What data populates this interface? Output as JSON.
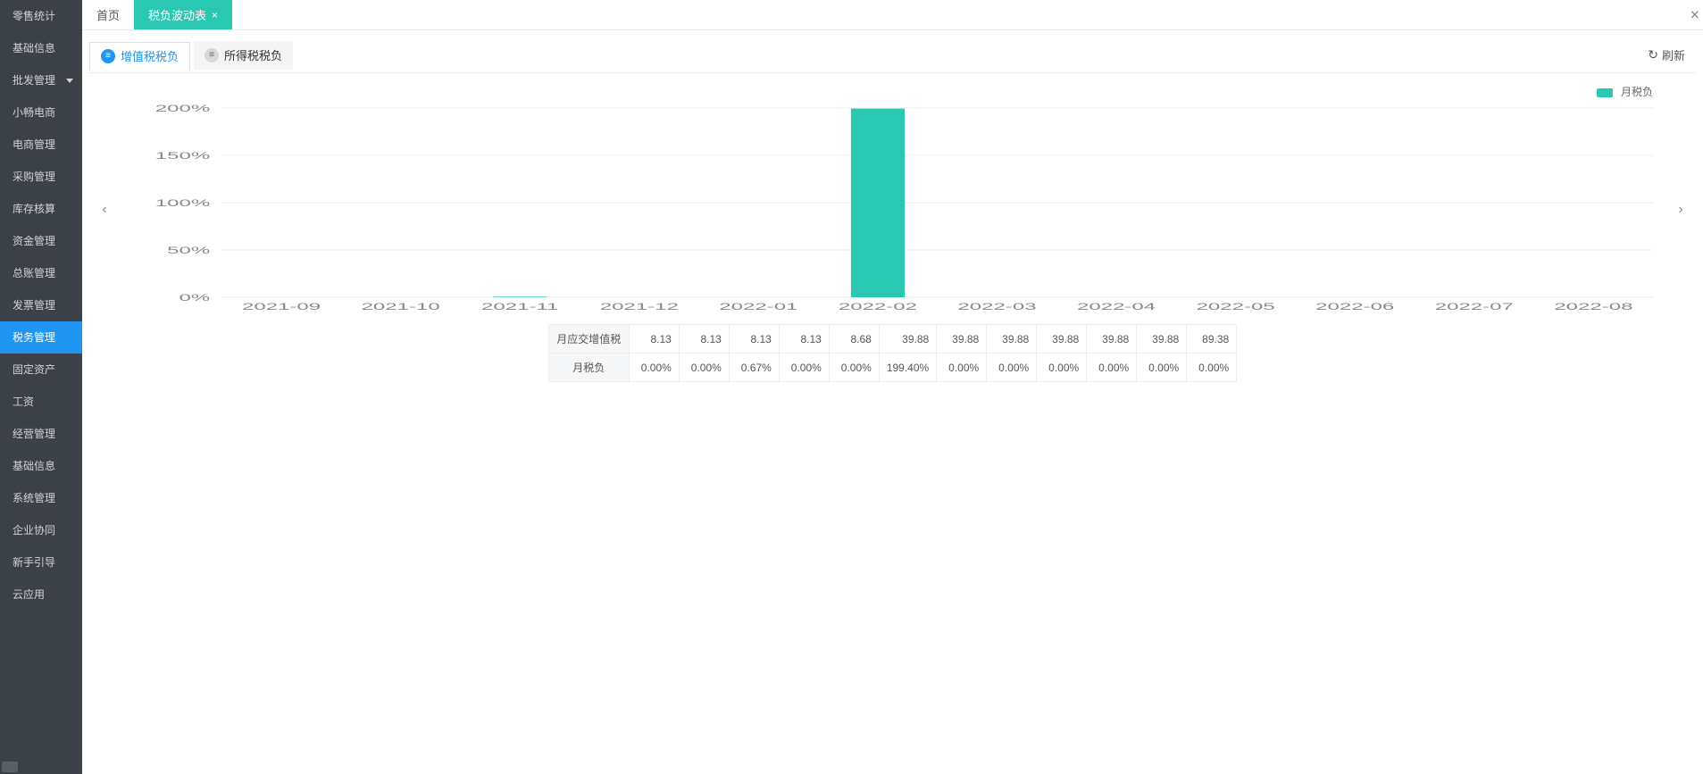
{
  "sidebar": {
    "items": [
      {
        "label": "零售统计"
      },
      {
        "label": "基础信息"
      },
      {
        "label": "批发管理",
        "caret": true
      },
      {
        "label": "小畅电商"
      },
      {
        "label": "电商管理"
      },
      {
        "label": "采购管理"
      },
      {
        "label": "库存核算"
      },
      {
        "label": "资金管理"
      },
      {
        "label": "总账管理"
      },
      {
        "label": "发票管理"
      },
      {
        "label": "税务管理",
        "active": true
      },
      {
        "label": "固定资产"
      },
      {
        "label": "工资"
      },
      {
        "label": "经营管理"
      },
      {
        "label": "基础信息"
      },
      {
        "label": "系统管理"
      },
      {
        "label": "企业协同"
      },
      {
        "label": "新手引导"
      },
      {
        "label": "云应用"
      }
    ]
  },
  "tabs": {
    "items": [
      {
        "label": "首页",
        "active": false,
        "closable": false
      },
      {
        "label": "税负波动表",
        "active": true,
        "closable": true
      }
    ]
  },
  "subtabs": {
    "items": [
      {
        "label": "增值税税负",
        "active": true,
        "icon": "≡"
      },
      {
        "label": "所得税税负",
        "active": false,
        "icon": "≡"
      }
    ],
    "refresh_label": "刷新"
  },
  "chart": {
    "type": "bar",
    "legend_label": "月税负",
    "categories": [
      "2021-09",
      "2021-10",
      "2021-11",
      "2021-12",
      "2022-01",
      "2022-02",
      "2022-03",
      "2022-04",
      "2022-05",
      "2022-06",
      "2022-07",
      "2022-08"
    ],
    "values_pct": [
      0.0,
      0.0,
      0.67,
      0.0,
      0.0,
      199.4,
      0.0,
      0.0,
      0.0,
      0.0,
      0.0,
      0.0
    ],
    "bar_color": "#2ac8b0",
    "ylim": [
      0,
      200
    ],
    "ytick_step": 50,
    "ytick_labels": [
      "0%",
      "50%",
      "100%",
      "150%",
      "200%"
    ],
    "grid_color": "#eeeeee",
    "axis_text_color": "#888888",
    "bar_width_ratio": 0.45
  },
  "table": {
    "row_headers": [
      "月应交增值税",
      "月税负"
    ],
    "rows": [
      [
        "8.13",
        "8.13",
        "8.13",
        "8.13",
        "8.68",
        "39.88",
        "39.88",
        "39.88",
        "39.88",
        "39.88",
        "39.88",
        "89.38"
      ],
      [
        "0.00%",
        "0.00%",
        "0.67%",
        "0.00%",
        "0.00%",
        "199.40%",
        "0.00%",
        "0.00%",
        "0.00%",
        "0.00%",
        "0.00%",
        "0.00%"
      ]
    ]
  }
}
